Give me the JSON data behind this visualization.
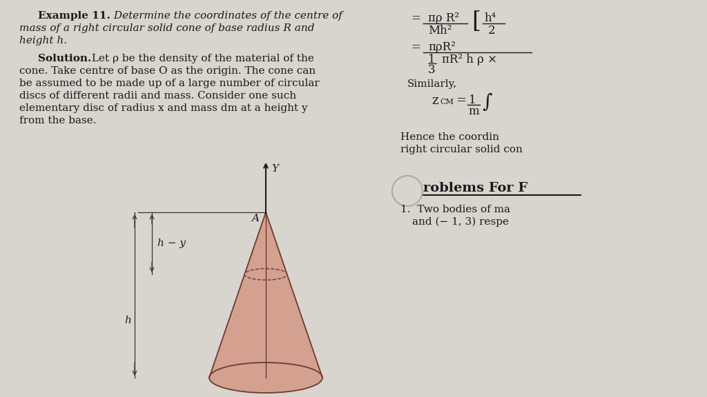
{
  "bg_color": "#c8c5c0",
  "page_bg": "#d8d4ce",
  "text_color": "#1a1a1a",
  "cone_fill": "#d4a090",
  "cone_line": "#6b3a30",
  "axis_color": "#1a1a1a",
  "dim_line_color": "#333333",
  "title_bold": "Example 11.",
  "title_italic": " Determine the coordinates of the centre of",
  "line2_italic": "mass of a right circular solid cone of base radius R and",
  "line3_italic": "height h.",
  "sol_bold": "Solution.",
  "sol_rest": " Let ρ be the density of the material of the",
  "sol2": "cone. Take centre of base O as the origin. The cone can",
  "sol3": "be assumed to be made up of a large number of circular",
  "sol4": "discs of different radii and mass. Consider one such",
  "sol5": "elementary disc of radius x and mass dm at a height y",
  "sol6": "from the base.",
  "similarly": "Similarly,",
  "hence1": "Hence the coordin",
  "hence2": "right circular solid con",
  "prob_title": "roblems For F",
  "item1a": "1.  Two bodies of ma",
  "item1b": "and (− 1, 3) respe"
}
